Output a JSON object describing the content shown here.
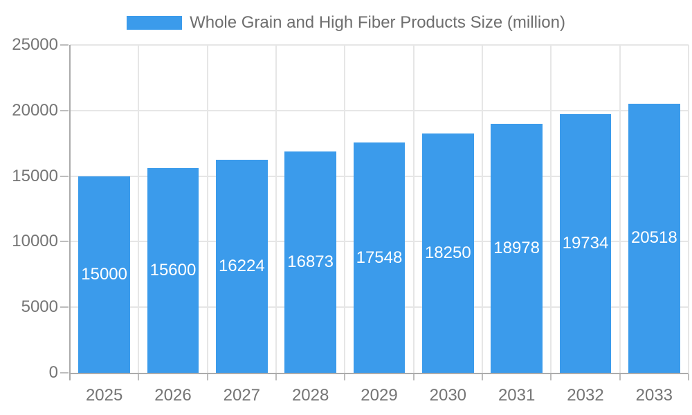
{
  "chart_data": {
    "type": "bar",
    "title": "Whole Grain and High Fiber Products Size (million)",
    "categories": [
      "2025",
      "2026",
      "2027",
      "2028",
      "2029",
      "2030",
      "2031",
      "2032",
      "2033"
    ],
    "values": [
      15000,
      15600,
      16224,
      16873,
      17548,
      18250,
      18978,
      19734,
      20518
    ],
    "xlabel": "",
    "ylabel": "",
    "ylim": [
      0,
      25000
    ],
    "y_ticks": [
      0,
      5000,
      10000,
      15000,
      20000,
      25000
    ],
    "grid": true,
    "legend_position": "top-center",
    "bar_labels": "inside-center"
  },
  "legend": {
    "series_label": "Whole Grain and High Fiber Products Size (million)"
  },
  "colors": {
    "bar": "#3B9BEB",
    "bar_label": "#FFFFFF",
    "axis_line": "#ABABAB",
    "grid_line": "#E6E6E6",
    "tick": "#BDBDBD",
    "axis_text": "#757575",
    "legend_text": "#6E6E6E",
    "background": "#FFFFFF"
  }
}
